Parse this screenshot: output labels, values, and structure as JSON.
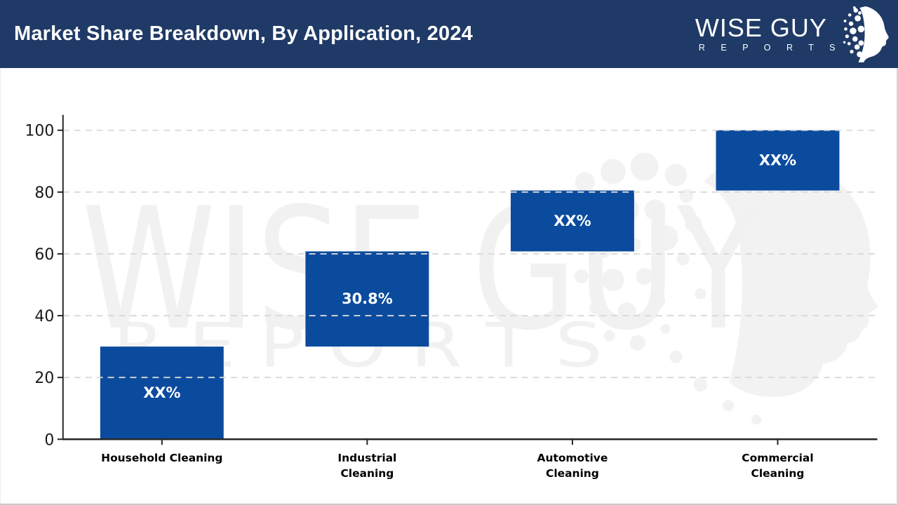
{
  "header": {
    "bg_color": "#1F3A66",
    "title": "Market Share Breakdown, By Application, 2024",
    "logo": {
      "wordmark": "WISE GUY",
      "subtext": "R E P O R T S"
    }
  },
  "watermark": {
    "line1": "WISE GUY",
    "line2": "R E P O R T S"
  },
  "chart_data": {
    "type": "bar",
    "subtype": "waterfall",
    "title": "Market Share Breakdown, By Application, 2024",
    "categories": [
      [
        "Household Cleaning"
      ],
      [
        "Industrial",
        "Cleaning"
      ],
      [
        "Automotive",
        "Cleaning"
      ],
      [
        "Commercial",
        "Cleaning"
      ]
    ],
    "segments": [
      {
        "name": "Household Cleaning",
        "start": 0,
        "end": 30,
        "label": "XX%"
      },
      {
        "name": "Industrial Cleaning",
        "start": 30,
        "end": 60.8,
        "label": "30.8%"
      },
      {
        "name": "Automotive Cleaning",
        "start": 60.8,
        "end": 80.5,
        "label": "XX%"
      },
      {
        "name": "Commercial Cleaning",
        "start": 80.5,
        "end": 100,
        "label": "XX%"
      }
    ],
    "ylim": [
      0,
      100
    ],
    "yticks": [
      0,
      20,
      40,
      60,
      80,
      100
    ],
    "xlabel": "",
    "ylabel": "",
    "bar_color": "#0B4B9E",
    "bar_label_color": "#ffffff",
    "axis_color": "#262626",
    "grid": true,
    "grid_color": "#d9d9d9",
    "legend": false
  }
}
